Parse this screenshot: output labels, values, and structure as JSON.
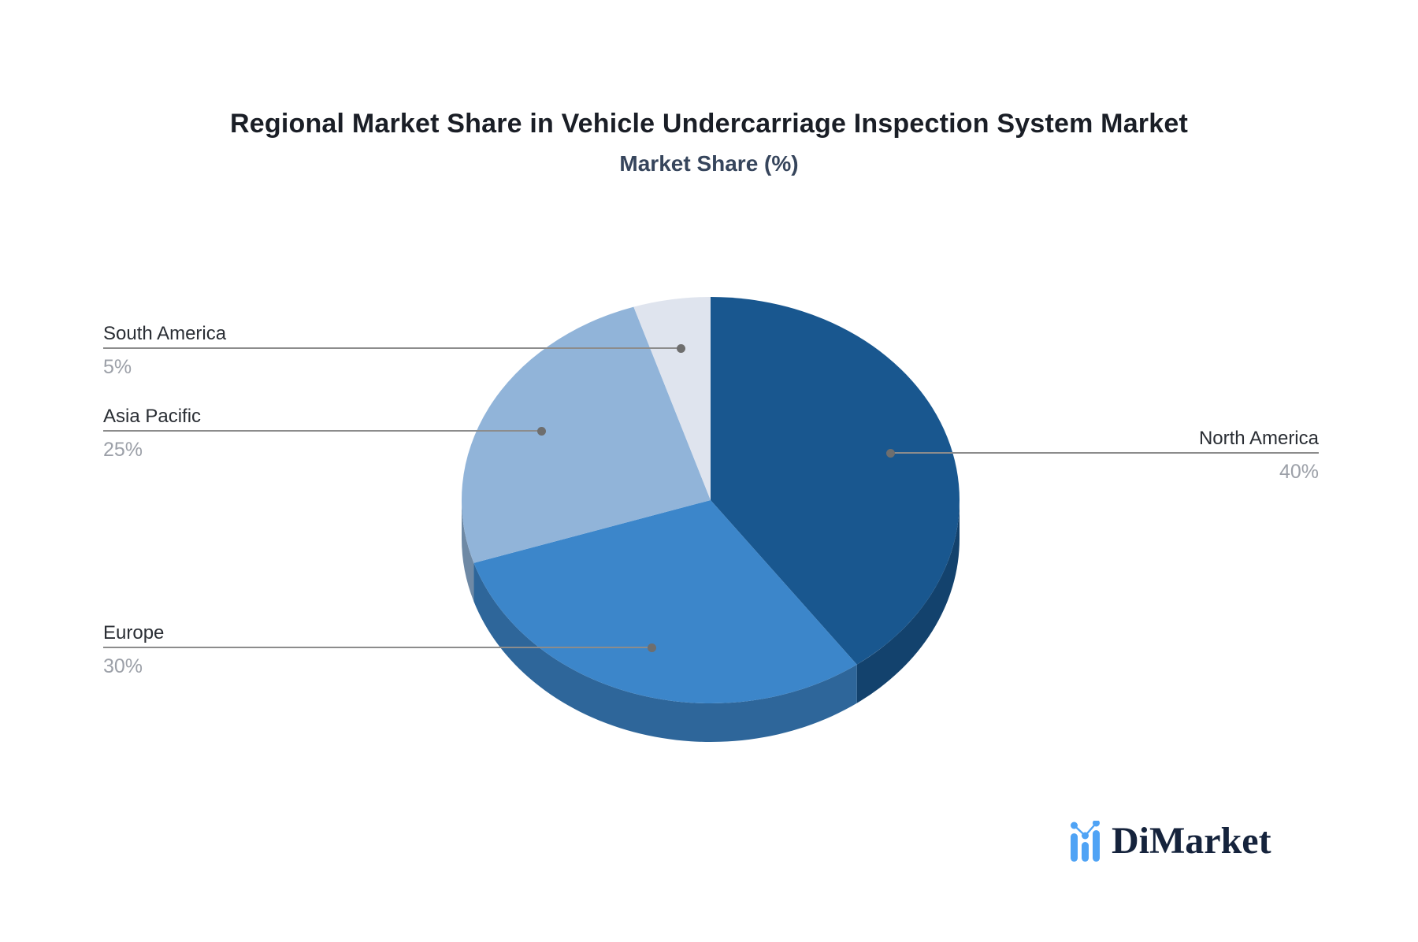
{
  "chart_data": {
    "type": "pie",
    "style": "3d-pie",
    "title": "Regional Market Share in Vehicle Undercarriage Inspection System Market",
    "subtitle": "Market Share (%)",
    "categories": [
      "North America",
      "Europe",
      "Asia Pacific",
      "South America"
    ],
    "values": [
      40,
      30,
      25,
      5
    ],
    "percent_labels": [
      "40%",
      "30%",
      "25%",
      "5%"
    ],
    "colors": [
      "#19578F",
      "#3C86CA",
      "#91B4D9",
      "#DFE4EE"
    ],
    "start_angle": "top",
    "direction": "clockwise",
    "legend_position": "callout-labels"
  },
  "logo": {
    "text": "DiMarket",
    "icon": "bar-line-chart-icon",
    "icon_color": "#4FA3F5",
    "text_color": "#15233C"
  }
}
